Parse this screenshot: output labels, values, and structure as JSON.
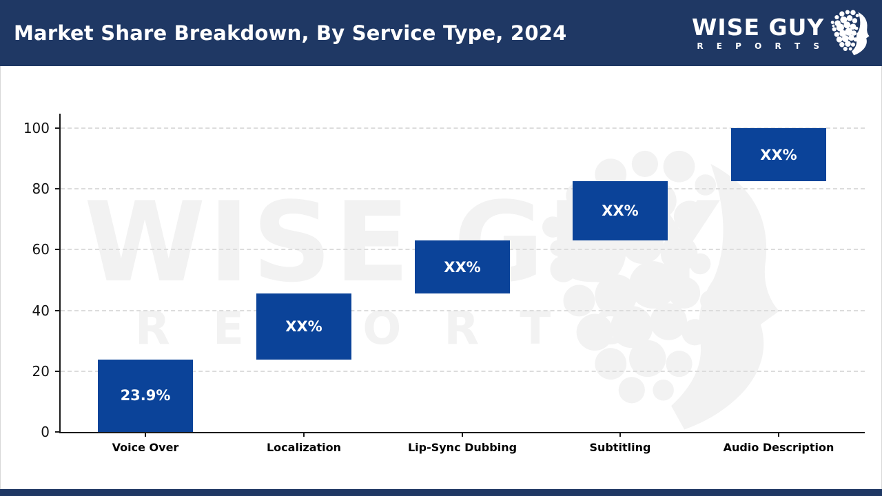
{
  "header": {
    "title": "Market Share Breakdown, By Service Type, 2024",
    "bg_color": "#1f3864",
    "logo": {
      "word": "WISE GUY",
      "reports": "REPORTS",
      "face_icon": "dotted-face-profile-icon"
    }
  },
  "watermark": {
    "line1": "WISE GUY",
    "line2": "REPORTS",
    "face_icon": "dotted-face-profile-icon"
  },
  "footer": {
    "bg_color": "#1f3864"
  },
  "chart_data": {
    "type": "bar",
    "subtype": "floating-waterfall",
    "title": "Market Share Breakdown, By Service Type, 2024",
    "categories": [
      "Voice Over",
      "Localization",
      "Lip-Sync Dubbing",
      "Subtitling",
      "Audio Description"
    ],
    "bars": [
      {
        "category": "Voice Over",
        "start": 0,
        "end": 23.9,
        "label": "23.9%"
      },
      {
        "category": "Localization",
        "start": 23.9,
        "end": 45.5,
        "label": "XX%"
      },
      {
        "category": "Lip-Sync Dubbing",
        "start": 45.5,
        "end": 63.0,
        "label": "XX%"
      },
      {
        "category": "Subtitling",
        "start": 63.0,
        "end": 82.5,
        "label": "XX%"
      },
      {
        "category": "Audio Description",
        "start": 82.5,
        "end": 100.0,
        "label": "XX%"
      }
    ],
    "y_ticks": [
      0,
      20,
      40,
      60,
      80,
      100
    ],
    "ylim": [
      0,
      103.5
    ],
    "xlabel": "",
    "ylabel": "",
    "legend": null,
    "grid": {
      "horizontal": true,
      "style": "dashed",
      "color": "#dcdcdc"
    },
    "bar_color": "#0b4399",
    "bar_label_color": "#ffffff",
    "axis_color": "#1a1a1a"
  }
}
